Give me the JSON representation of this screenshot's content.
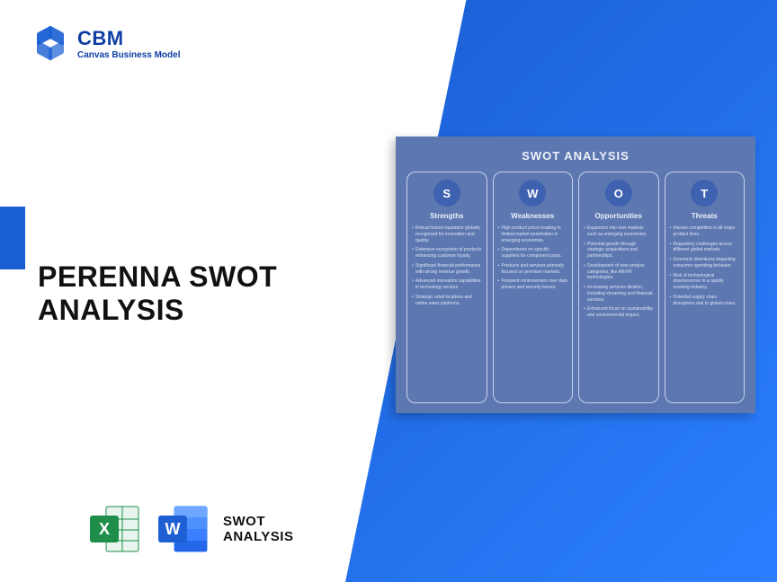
{
  "brand": {
    "name": "CBM",
    "tagline": "Canvas Business Model",
    "color": "#0e3ea3"
  },
  "accent_color": "#1a5fd4",
  "gradient": {
    "from": "#1a5fd4",
    "to": "#2b7fff"
  },
  "title": {
    "line1": "PERENNA SWOT",
    "line2": "ANALYSIS"
  },
  "bottom": {
    "label_line1": "SWOT",
    "label_line2": "ANALYSIS",
    "excel_color": "#1e8e4a",
    "word_color": "#2b7fff"
  },
  "swot_panel": {
    "title": "SWOT ANALYSIS",
    "background": "#5d77b0",
    "badge_bg": "#3f62b0",
    "border_color": "#c7d2ea",
    "text_color": "#dbe4f5",
    "columns": [
      {
        "letter": "S",
        "heading": "Strengths",
        "items": [
          "Robust brand reputation globally recognized for innovation and quality.",
          "Extensive ecosystem of products enhancing customer loyalty.",
          "Significant financial performance with strong revenue growth.",
          "Advanced innovation capabilities in technology sectors.",
          "Strategic retail locations and online sales platforms."
        ]
      },
      {
        "letter": "W",
        "heading": "Weaknesses",
        "items": [
          "High product prices leading to limited market penetration in emerging economies.",
          "Dependence on specific suppliers for component parts.",
          "Products and services primarily focused on premium markets.",
          "Frequent controversies over data privacy and security issues."
        ]
      },
      {
        "letter": "O",
        "heading": "Opportunities",
        "items": [
          "Expansion into new markets such as emerging economies.",
          "Potential growth through strategic acquisitions and partnerships.",
          "Development of new product categories, like AR/VR technologies.",
          "Increasing services division, including streaming and financial services.",
          "Enhanced focus on sustainability and environmental impact."
        ]
      },
      {
        "letter": "T",
        "heading": "Threats",
        "items": [
          "Intense competition in all major product lines.",
          "Regulatory challenges across different global markets.",
          "Economic downturns impacting consumer spending behavior.",
          "Risk of technological obsolescence in a rapidly evolving industry.",
          "Potential supply chain disruptions due to global crises."
        ]
      }
    ]
  }
}
